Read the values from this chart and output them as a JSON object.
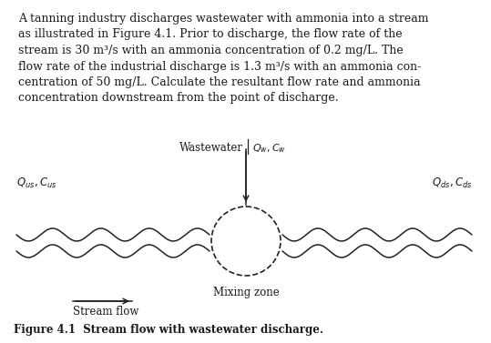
{
  "background_color": "#ffffff",
  "text_color": "#1a1a1a",
  "paragraph_lines": [
    "A tanning industry discharges wastewater with ammonia into a stream",
    "as illustrated in Figure 4.1. Prior to discharge, the flow rate of the",
    "stream is 30 m³/s with an ammonia concentration of 0.2 mg/L. The",
    "flow rate of the industrial discharge is 1.3 m³/s with an ammonia con-",
    "centration of 50 mg/L. Calculate the resultant flow rate and ammonia",
    "concentration downstream from the point of discharge."
  ],
  "figure_caption": "Figure 4.1  Stream flow with wastewater discharge.",
  "label_wastewater": "Wastewater",
  "label_qw_cw": "$Q_w, C_w$",
  "label_qus_cus": "$Q_{us}, C_{us}$",
  "label_qds_cds": "$Q_{ds}, C_{ds}$",
  "label_stream_flow": "Stream flow",
  "label_mixing_zone": "Mixing zone",
  "font_size_body": 9.0,
  "font_size_diagram": 8.5,
  "font_size_caption": 8.5
}
